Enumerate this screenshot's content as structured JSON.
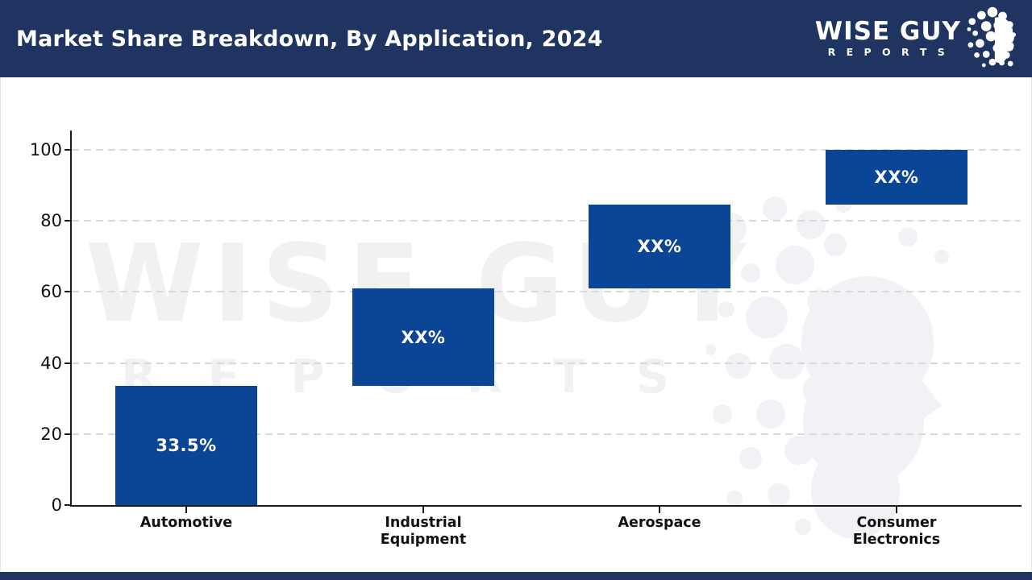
{
  "header": {
    "title": "Market Share Breakdown, By Application, 2024",
    "brand": {
      "name": "WISE GUY",
      "sub": "R E P O R T S"
    },
    "bg_color": "#1f3461"
  },
  "watermark": {
    "line1": "WISE GUY",
    "line2": "R E P O R T S"
  },
  "footer": {
    "bg_color": "#1f3461"
  },
  "chart_data": {
    "type": "bar",
    "variant": "floating-waterfall",
    "title": "Market Share Breakdown, By Application, 2024",
    "categories": [
      "Automotive",
      "Industrial Equipment",
      "Aerospace",
      "Consumer Electronics"
    ],
    "category_display": [
      "Automotive",
      "Industrial\nEquipment",
      "Aerospace",
      "Consumer\nElectronics"
    ],
    "segments": [
      [
        0,
        33.5
      ],
      [
        33.5,
        61
      ],
      [
        61,
        84.5
      ],
      [
        84.5,
        100
      ]
    ],
    "values": [
      33.5,
      27.5,
      23.5,
      15.5
    ],
    "bar_labels": [
      "33.5%",
      "XX%",
      "XX%",
      "XX%"
    ],
    "xlabel": "",
    "ylabel": "",
    "ylim": [
      0,
      100
    ],
    "yticks": [
      0,
      20,
      40,
      60,
      80,
      100
    ],
    "grid": {
      "horizontal": true,
      "style": "dashed",
      "color": "#d9d9d9"
    },
    "legend": "none",
    "bar_color": "#0b4596"
  }
}
